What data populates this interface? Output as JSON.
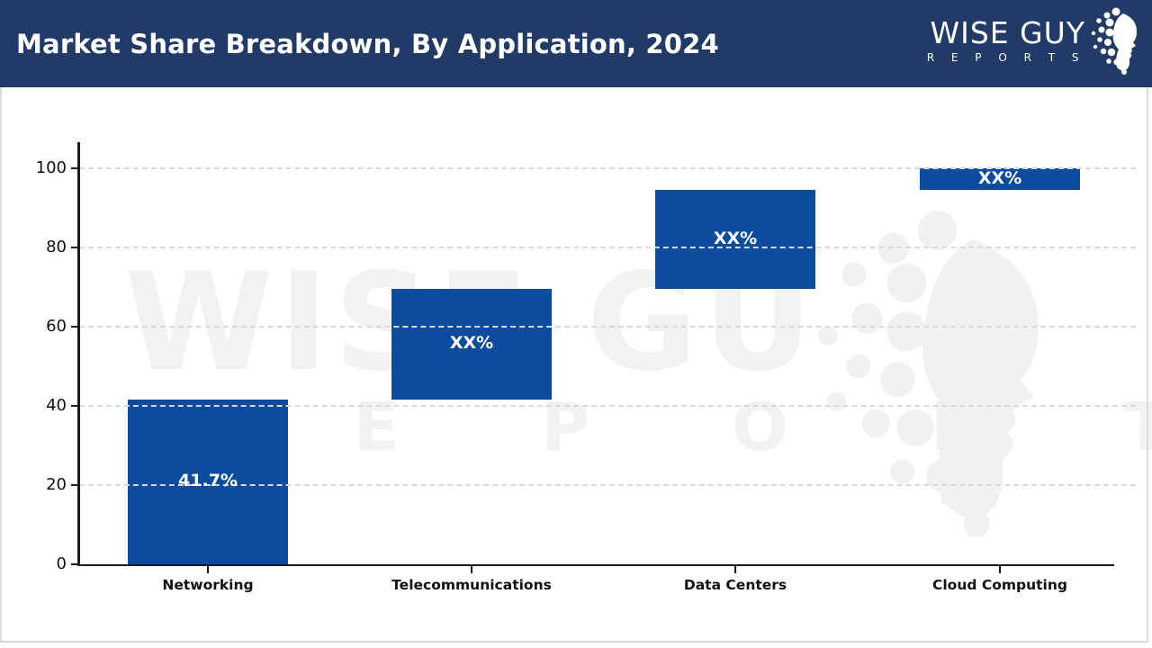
{
  "header": {
    "title": "Market Share Breakdown, By Application, 2024",
    "bg_color": "#223a67",
    "logo": {
      "line1": "WISE GUY",
      "line2": "R E P O R T S",
      "head_icon": "dotted-head-profile"
    }
  },
  "watermark": {
    "line1": "WISE GU",
    "line2": "R E P O R T S",
    "head_icon": "dotted-head-profile",
    "color": "#f2f2f2"
  },
  "chart_data": {
    "type": "bar",
    "subtype": "waterfall",
    "title": "Market Share Breakdown, By Application, 2024",
    "categories": [
      "Networking",
      "Telecommunications",
      "Data Centers",
      "Cloud Computing"
    ],
    "segments": [
      {
        "category": "Networking",
        "start": 0,
        "end": 41.7,
        "label": "41.7%"
      },
      {
        "category": "Telecommunications",
        "start": 41.7,
        "end": 69.5,
        "label": "XX%"
      },
      {
        "category": "Data Centers",
        "start": 69.5,
        "end": 94.5,
        "label": "XX%"
      },
      {
        "category": "Cloud Computing",
        "start": 94.5,
        "end": 100,
        "label": "XX%"
      }
    ],
    "yticks": [
      0,
      20,
      40,
      60,
      80,
      100
    ],
    "ylim": [
      0,
      105
    ],
    "xlabel": "",
    "ylabel": "",
    "bar_color": "#0d4b9e",
    "grid": "horizontal-dashed",
    "legend": "none"
  }
}
